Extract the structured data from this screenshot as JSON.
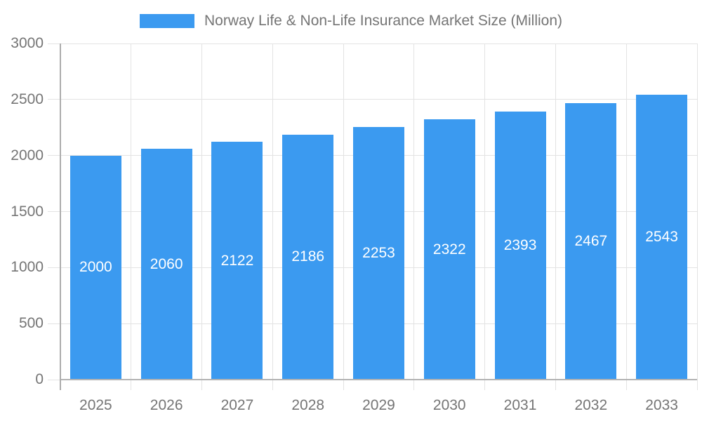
{
  "chart_data": {
    "type": "bar",
    "title": "Norway Life & Non-Life Insurance Market Size (Million)",
    "categories": [
      "2025",
      "2026",
      "2027",
      "2028",
      "2029",
      "2030",
      "2031",
      "2032",
      "2033"
    ],
    "values": [
      2000,
      2060,
      2122,
      2186,
      2253,
      2322,
      2393,
      2467,
      2543
    ],
    "xlabel": "",
    "ylabel": "",
    "ylim": [
      0,
      3000
    ],
    "ytick_step": 500,
    "yticks": [
      0,
      500,
      1000,
      1500,
      2000,
      2500,
      3000
    ],
    "grid": true,
    "legend_position": "top-center",
    "data_labels": "inside-center",
    "colors": {
      "bar": "#3b9af0",
      "bar_label": "#ffffff",
      "axis_text": "#757575",
      "title_text": "#757575",
      "gridline": "#e3e3e3",
      "axis_line": "#b3b3b3",
      "background": "#ffffff"
    }
  }
}
